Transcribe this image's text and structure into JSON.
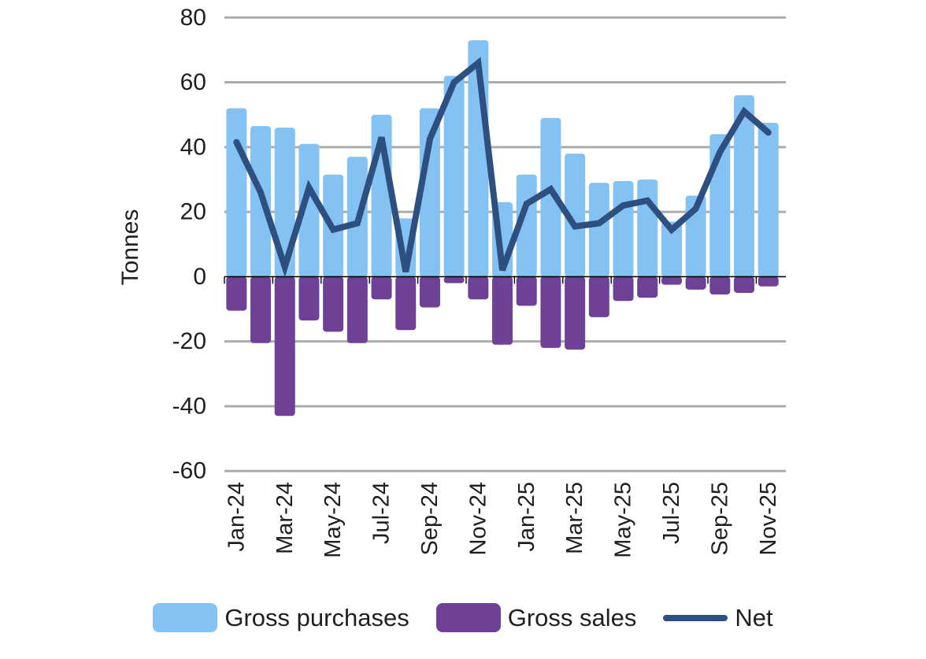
{
  "chart_data": {
    "type": "combo-bar-line",
    "title": "",
    "xlabel": "",
    "ylabel": "Tonnes",
    "ylim": [
      -60,
      80
    ],
    "yticks": [
      80,
      60,
      40,
      20,
      0,
      -20,
      -40,
      -60
    ],
    "grid": "horizontal",
    "legend_position": "bottom",
    "x_tick_label_rotation_deg": -90,
    "x_tick_labels_shown": [
      "Jan-24",
      "Mar-24",
      "May-24",
      "Jul-24",
      "Sep-24",
      "Nov-24",
      "Jan-25",
      "Mar-25",
      "May-25",
      "Jul-25",
      "Sep-25",
      "Nov-25"
    ],
    "categories": [
      "Jan-24",
      "Feb-24",
      "Mar-24",
      "Apr-24",
      "May-24",
      "Jun-24",
      "Jul-24",
      "Aug-24",
      "Sep-24",
      "Oct-24",
      "Nov-24",
      "Dec-24",
      "Jan-25",
      "Feb-25",
      "Mar-25",
      "Apr-25",
      "May-25",
      "Jun-25",
      "Jul-25",
      "Aug-25",
      "Sep-25",
      "Oct-25",
      "Nov-25"
    ],
    "series": [
      {
        "name": "Gross purchases",
        "type": "bar",
        "color": "#85C2F4",
        "values": [
          52,
          46.5,
          46,
          41,
          31.5,
          37,
          50,
          18,
          52,
          62,
          73,
          23,
          31.5,
          49,
          38,
          29,
          29.5,
          30,
          17,
          25,
          44,
          56,
          47.5
        ]
      },
      {
        "name": "Gross sales",
        "type": "bar",
        "color": "#6E4196",
        "values": [
          -10.5,
          -20.5,
          -43,
          -13.5,
          -17,
          -20.5,
          -7,
          -16.5,
          -9.5,
          -2,
          -7,
          -21,
          -9,
          -22,
          -22.5,
          -12.5,
          -7.5,
          -6.5,
          -2.5,
          -4,
          -5.5,
          -5,
          -3
        ]
      },
      {
        "name": "Net",
        "type": "line",
        "color": "#2D5080",
        "values": [
          41.5,
          26,
          3,
          27.5,
          14.5,
          16.5,
          43,
          1.5,
          42.5,
          60,
          66,
          2,
          22.5,
          27,
          15.5,
          16.5,
          22,
          23.5,
          14.5,
          21,
          38.5,
          51,
          44.5
        ]
      }
    ]
  },
  "colors": {
    "background": "#FFFFFF",
    "gridline": "#ABABAB",
    "axis_line": "#000000",
    "text": "#1F1F1F"
  }
}
